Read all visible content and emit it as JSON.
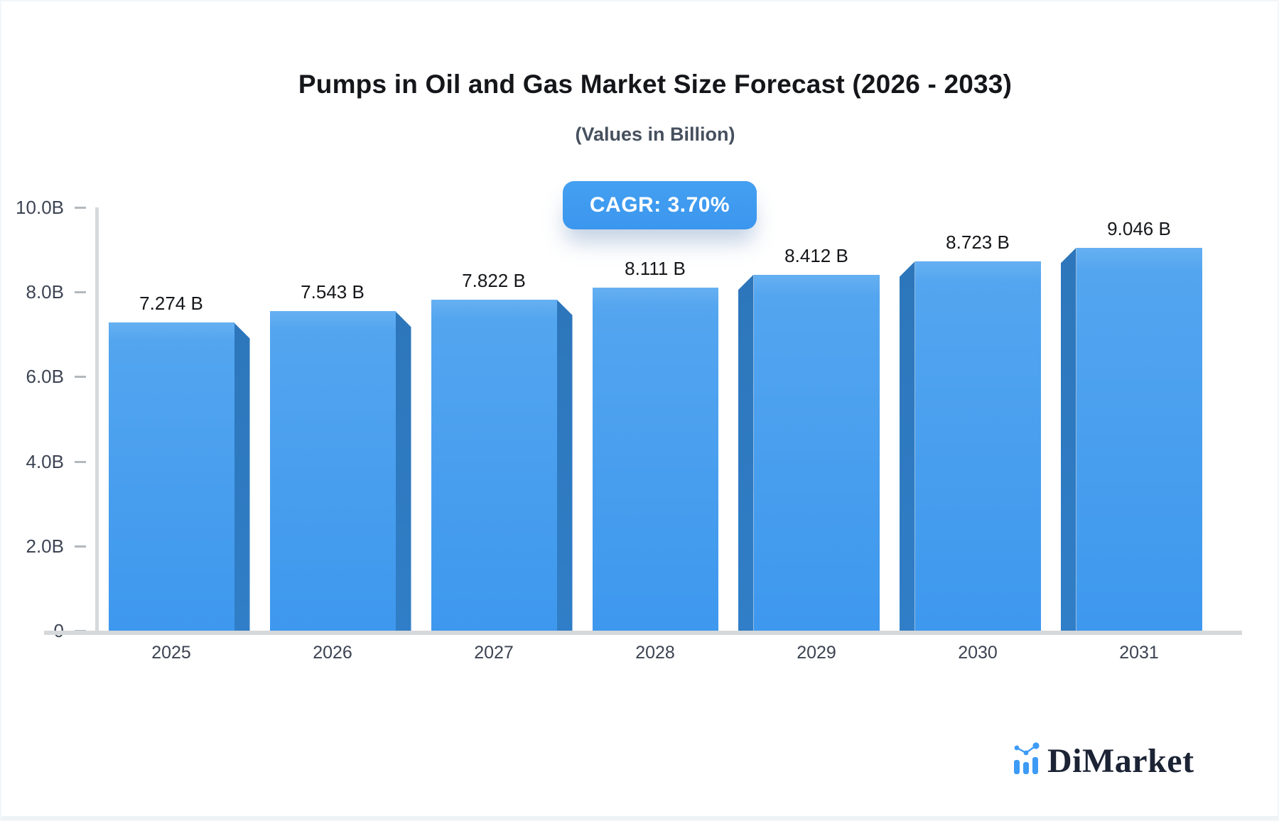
{
  "title": "Pumps in Oil and Gas Market Size Forecast (2026 - 2033)",
  "subtitle": "(Values in Billion)",
  "badge": {
    "label": "CAGR: 3.70%",
    "bg_color": "#3e9af0",
    "text_color": "#ffffff"
  },
  "chart_data": {
    "type": "bar",
    "title": "Pumps in Oil and Gas Market Size Forecast (2026 - 2033)",
    "subtitle": "(Values in Billion)",
    "categories": [
      "2025",
      "2026",
      "2027",
      "2028",
      "2029",
      "2030",
      "2031"
    ],
    "values": [
      7.274,
      7.543,
      7.822,
      8.111,
      8.412,
      8.723,
      9.046
    ],
    "value_labels": [
      "7.274 B",
      "7.543 B",
      "7.822 B",
      "8.111 B",
      "8.412 B",
      "8.723 B",
      "9.046 B"
    ],
    "xlabel": "",
    "ylabel": "",
    "ylim": [
      0,
      10
    ],
    "ytick_interval": 2,
    "ytick_labels": [
      "10.0B",
      "8.0B",
      "6.0B",
      "4.0B",
      "2.0B",
      "0"
    ],
    "grid": false,
    "legend": false,
    "cagr": "3.70%",
    "bar_face_color_top": "#53a5ef",
    "bar_face_color_bottom": "#3e98ee",
    "bar_side_color": "#2d76bb",
    "axis_color": "#d6d9dc",
    "tick_label_color": "#3d4453",
    "style_note": "3D beveled bars; bevel on right for bars left of center, flat center bar, bevel on left for bars right of center"
  },
  "logo": {
    "text": "DiMarket",
    "icon": "bar-chart-trend-icon",
    "icon_color": "#3d9bf5",
    "text_color": "#1b2334"
  }
}
